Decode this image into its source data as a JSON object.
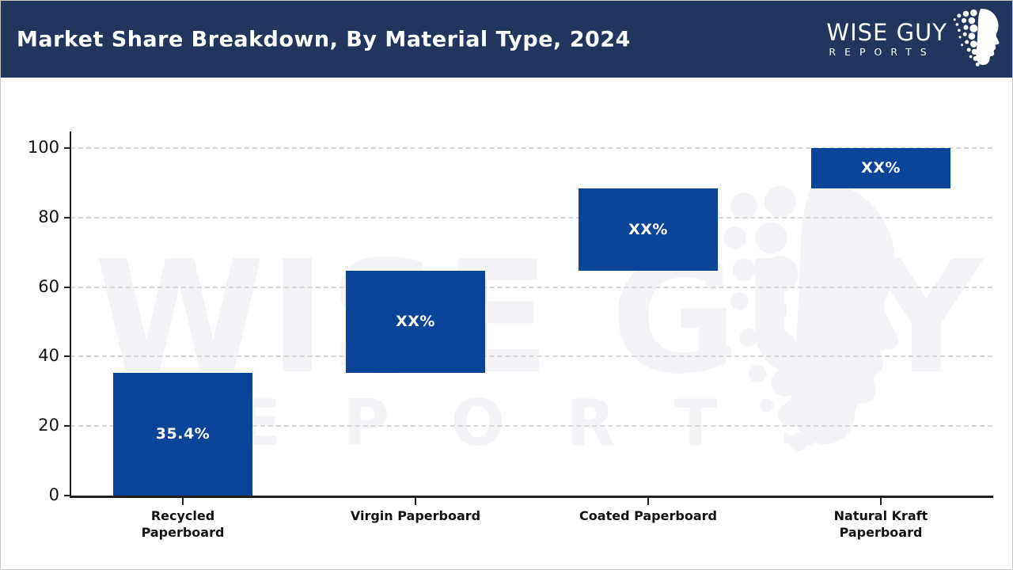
{
  "header": {
    "title": "Market Share Breakdown, By Material Type, 2024",
    "logo_line1": "WISE GUY",
    "logo_line2": "REPORTS"
  },
  "watermark": {
    "line1": "WISE GUY",
    "line2": "REPORTS"
  },
  "chart_data": {
    "type": "bar",
    "subtype": "waterfall",
    "title": "Market Share Breakdown, By Material Type, 2024",
    "categories": [
      [
        "Recycled",
        "Paperboard"
      ],
      [
        "Virgin Paperboard"
      ],
      [
        "Coated Paperboard"
      ],
      [
        "Natural Kraft",
        "Paperboard"
      ]
    ],
    "segments": [
      {
        "name": "Recycled Paperboard",
        "start": 0,
        "end": 35.4,
        "label": "35.4%"
      },
      {
        "name": "Virgin Paperboard",
        "start": 35.4,
        "end": 64.7,
        "label": "XX%"
      },
      {
        "name": "Coated Paperboard",
        "start": 64.7,
        "end": 88.4,
        "label": "XX%"
      },
      {
        "name": "Natural Kraft Paperboard",
        "start": 88.4,
        "end": 100,
        "label": "XX%"
      }
    ],
    "yticks": [
      0,
      20,
      40,
      60,
      80,
      100
    ],
    "ylim": [
      0,
      100
    ],
    "grid": true,
    "legend": false,
    "xlabel": "",
    "ylabel": ""
  },
  "colors": {
    "header_bg": "#22355f",
    "bar": "#0a4499",
    "grid": "#d8d8d8",
    "axis": "#1f1f1f",
    "watermark": "#f2f3f6"
  }
}
